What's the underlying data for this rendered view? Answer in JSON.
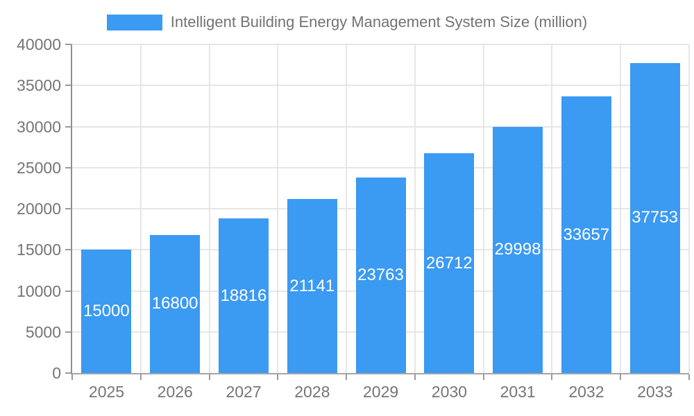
{
  "legend": {
    "label": "Intelligent Building Energy Management System Size (million)"
  },
  "chart_data": {
    "type": "bar",
    "title": "Intelligent Building Energy Management System Size (million)",
    "categories": [
      "2025",
      "2026",
      "2027",
      "2028",
      "2029",
      "2030",
      "2031",
      "2032",
      "2033"
    ],
    "values": [
      15000,
      16800,
      18816,
      21141,
      23763,
      26712,
      29998,
      33657,
      37753
    ],
    "series": [
      {
        "name": "Intelligent Building Energy Management System Size (million)",
        "values": [
          15000,
          16800,
          18816,
          21141,
          23763,
          26712,
          29998,
          33657,
          37753
        ]
      }
    ],
    "xlabel": "",
    "ylabel": "",
    "ylim": [
      0,
      40000
    ],
    "ytick_step": 5000,
    "ytick_labels": [
      "0",
      "5000",
      "10000",
      "15000",
      "20000",
      "25000",
      "30000",
      "35000",
      "40000"
    ],
    "grid": true,
    "legend_position": "top",
    "value_labels_shown": true,
    "colors": {
      "bar": "#3b9af2",
      "value_label": "#ffffff",
      "axis_text": "#757575",
      "legend_text": "#737373",
      "gridline": "#e6e6e6",
      "axis_line": "#9a9a9a",
      "background": "#ffffff"
    }
  }
}
